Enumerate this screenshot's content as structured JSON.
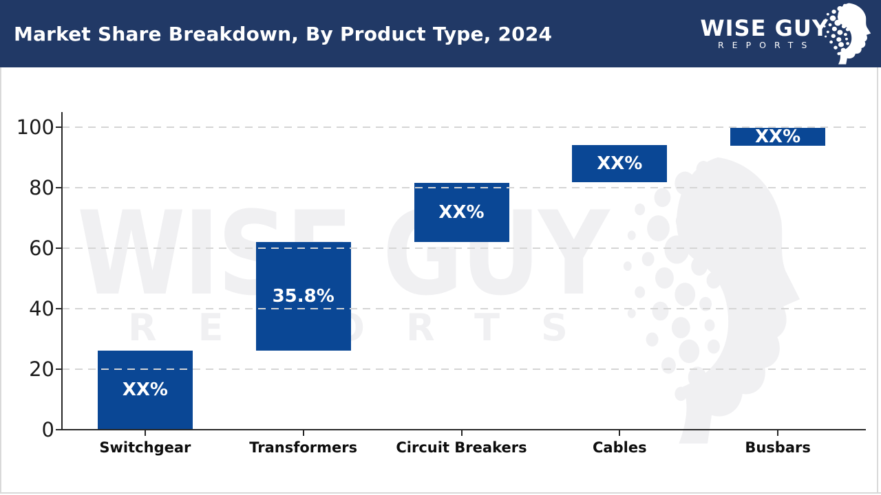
{
  "header": {
    "title": "Market Share Breakdown, By Product Type, 2024",
    "logo": {
      "name": "WISE GUY",
      "sub": "REPORTS"
    }
  },
  "watermark": {
    "name": "WISE GUY",
    "sub": "REPORTS"
  },
  "chart_data": {
    "type": "bar",
    "subtype": "waterfall",
    "title": "Market Share Breakdown, By Product Type, 2024",
    "categories": [
      "Switchgear",
      "Transformers",
      "Circuit Breakers",
      "Cables",
      "Busbars"
    ],
    "bars": [
      {
        "category": "Switchgear",
        "start": 0,
        "end": 26.2,
        "label": "XX%"
      },
      {
        "category": "Transformers",
        "start": 26.2,
        "end": 62.0,
        "label": "35.8%"
      },
      {
        "category": "Circuit Breakers",
        "start": 62.0,
        "end": 81.7,
        "label": "XX%"
      },
      {
        "category": "Cables",
        "start": 81.8,
        "end": 94.1,
        "label": "XX%"
      },
      {
        "category": "Busbars",
        "start": 93.9,
        "end": 99.8,
        "label": "XX%"
      }
    ],
    "values_pct": [
      26.2,
      35.8,
      19.7,
      12.3,
      5.9
    ],
    "xlabel": "",
    "ylabel": "",
    "yticks": [
      0,
      20,
      40,
      60,
      80,
      100
    ],
    "ylim": [
      0,
      105
    ],
    "grid": "horizontal-dashed",
    "legend": "none",
    "colors": {
      "bar": "#0A4795",
      "bar_label": "#FFFFFF",
      "axis": "#262626",
      "tick_label": "#1A1A1A",
      "gridline": "#D5D5D5",
      "header_bg": "#213966",
      "watermark": "#F0F0F2"
    }
  }
}
